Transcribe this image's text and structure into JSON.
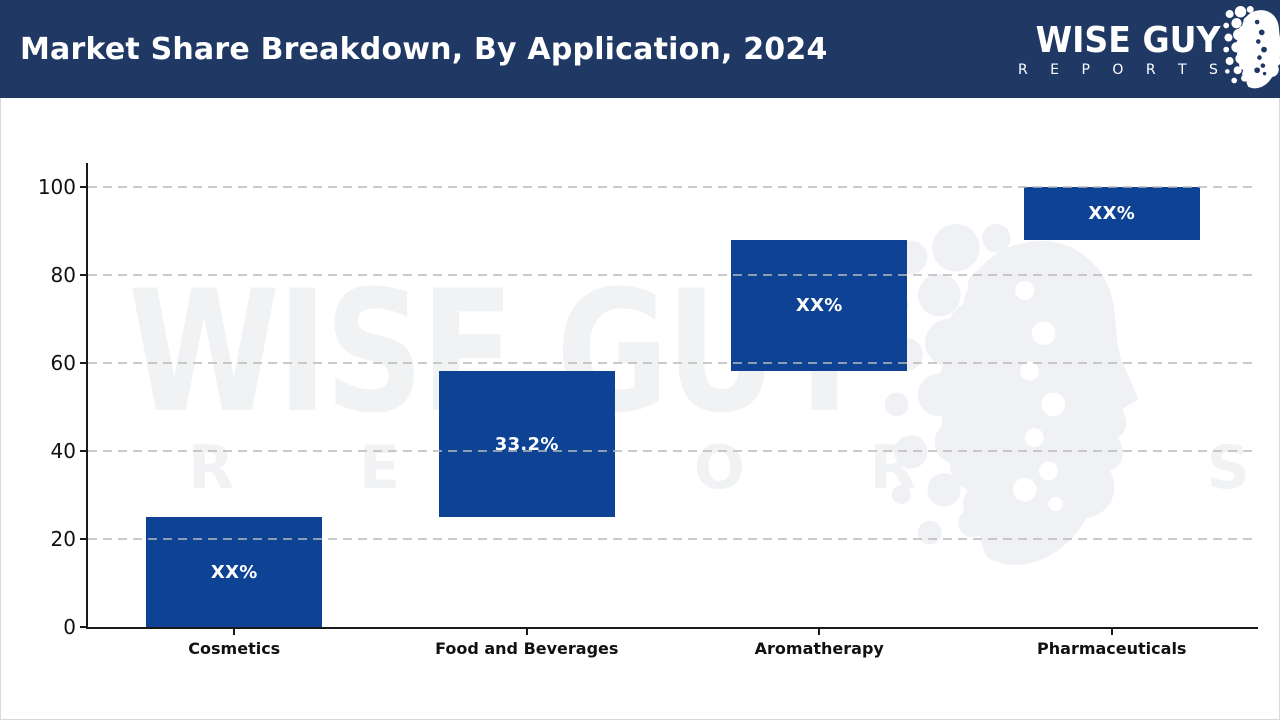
{
  "header": {
    "title": "Market Share Breakdown, By Application, 2024",
    "background_color": "#1f3864",
    "brand": {
      "line1": "WISE GUY",
      "line2": "R E P O R T S"
    }
  },
  "watermark": {
    "line1": "WISE GUY",
    "line2": "R E P O R T S"
  },
  "chart_data": {
    "type": "bar",
    "subtype": "floating-waterfall-breakdown",
    "title": "Market Share Breakdown, By Application, 2024",
    "xlabel": "",
    "ylabel": "",
    "categories": [
      "Cosmetics",
      "Food and Beverages",
      "Aromatherapy",
      "Pharmaceuticals"
    ],
    "segments": [
      {
        "category": "Cosmetics",
        "start": 0,
        "end": 25.0,
        "value": 25.0,
        "label": "XX%"
      },
      {
        "category": "Food and Beverages",
        "start": 25.0,
        "end": 58.2,
        "value": 33.2,
        "label": "33.2%"
      },
      {
        "category": "Aromatherapy",
        "start": 58.2,
        "end": 88.0,
        "value": 29.8,
        "label": "XX%"
      },
      {
        "category": "Pharmaceuticals",
        "start": 88.0,
        "end": 100.0,
        "value": 12.0,
        "label": "XX%"
      }
    ],
    "yticks": [
      0,
      20,
      40,
      60,
      80,
      100
    ],
    "ylim": [
      0,
      105.5
    ],
    "grid": "dashed-horizontal",
    "legend": "none",
    "bar_color": "#0d4294",
    "bar_label_color": "#ffffff",
    "axis_color": "#1a1a1a",
    "gridline_color": "#bdbdbd",
    "watermark_color": "#f1f2f4"
  }
}
